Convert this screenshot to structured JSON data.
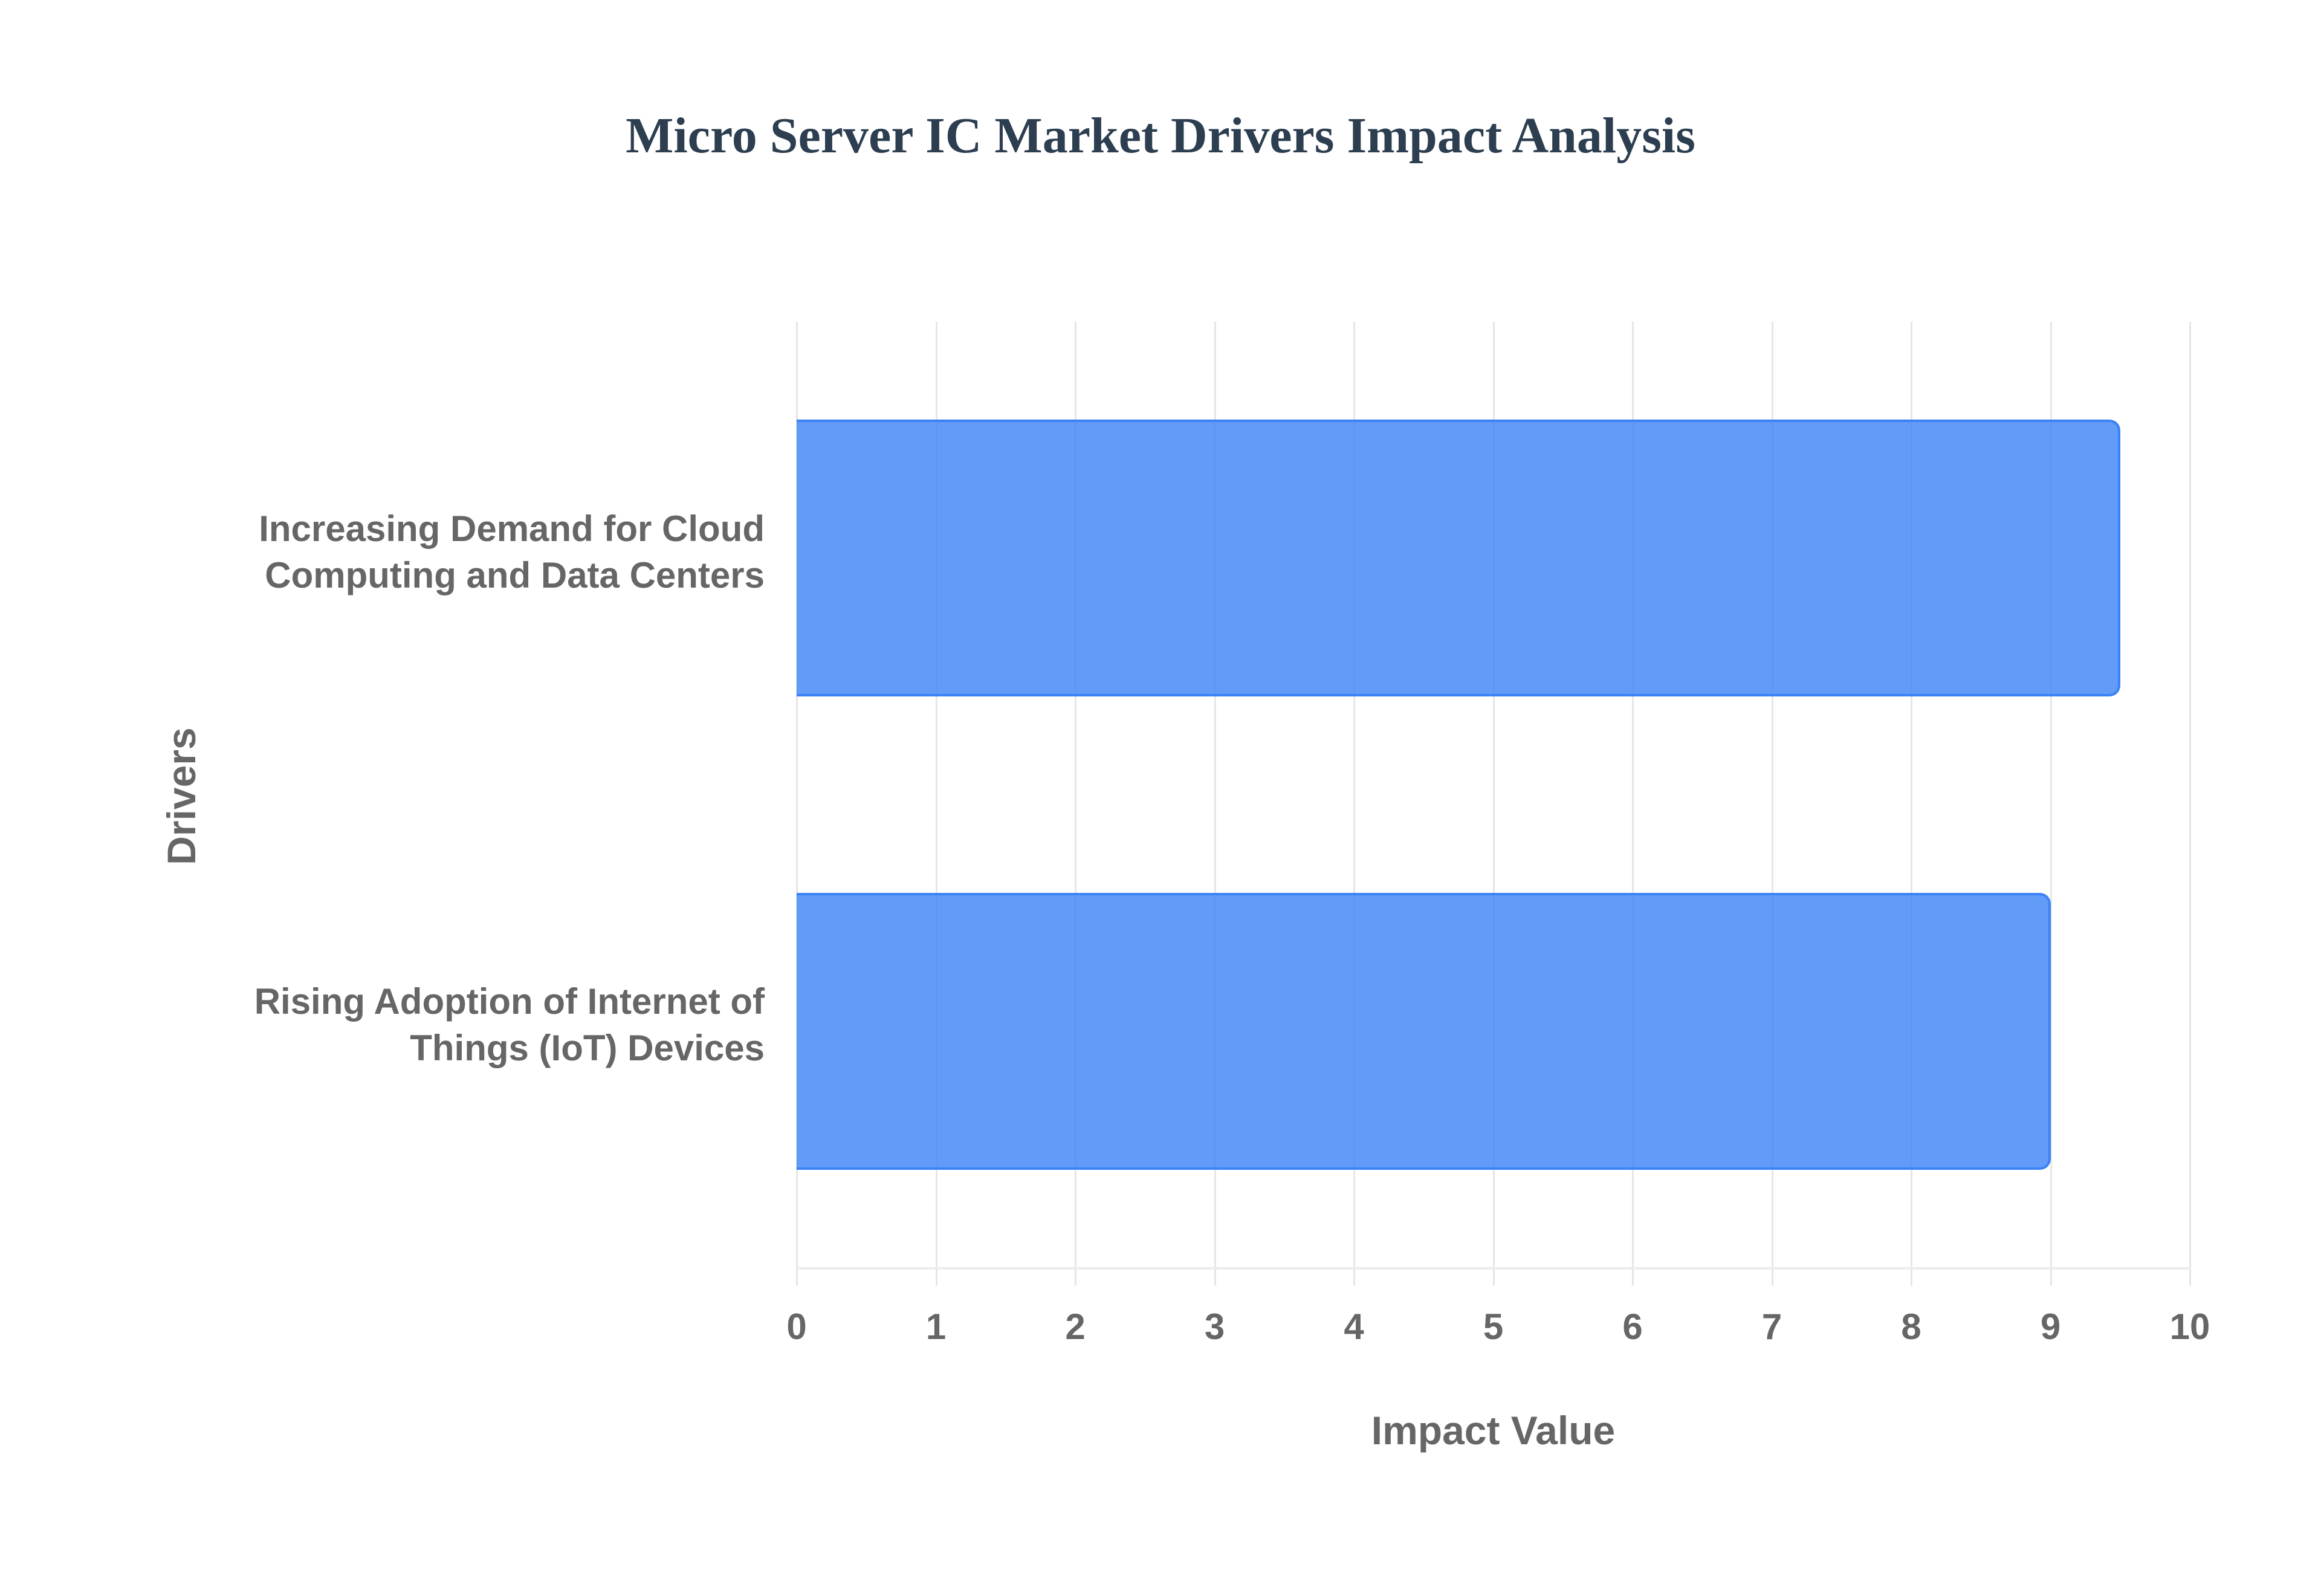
{
  "title": "Micro Server IC Market Drivers Impact Analysis",
  "colors": {
    "title": "#2c3e50",
    "bar_fill": "rgba(59,130,246,0.8)",
    "bar_border": "#3b82f6",
    "axis_text": "#666666",
    "grid": "#e6e6e6"
  },
  "axes": {
    "x_title": "Impact Value",
    "y_title": "Drivers",
    "x_ticks": [
      "0",
      "1",
      "2",
      "3",
      "4",
      "5",
      "6",
      "7",
      "8",
      "9",
      "10"
    ],
    "y_categories": [
      {
        "line1": "Increasing Demand for Cloud",
        "line2": "Computing and Data Centers"
      },
      {
        "line1": "Rising Adoption of Internet of",
        "line2": "Things (IoT) Devices"
      }
    ]
  },
  "chart_data": {
    "type": "bar",
    "orientation": "horizontal",
    "title": "Micro Server IC Market Drivers Impact Analysis",
    "categories": [
      "Increasing Demand for Cloud Computing and Data Centers",
      "Rising Adoption of Internet of Things (IoT) Devices"
    ],
    "values": [
      9.5,
      9
    ],
    "xlabel": "Impact Value",
    "ylabel": "Drivers",
    "xlim": [
      0,
      10
    ],
    "x_ticks": [
      0,
      1,
      2,
      3,
      4,
      5,
      6,
      7,
      8,
      9,
      10
    ],
    "grid": true,
    "legend": false
  }
}
